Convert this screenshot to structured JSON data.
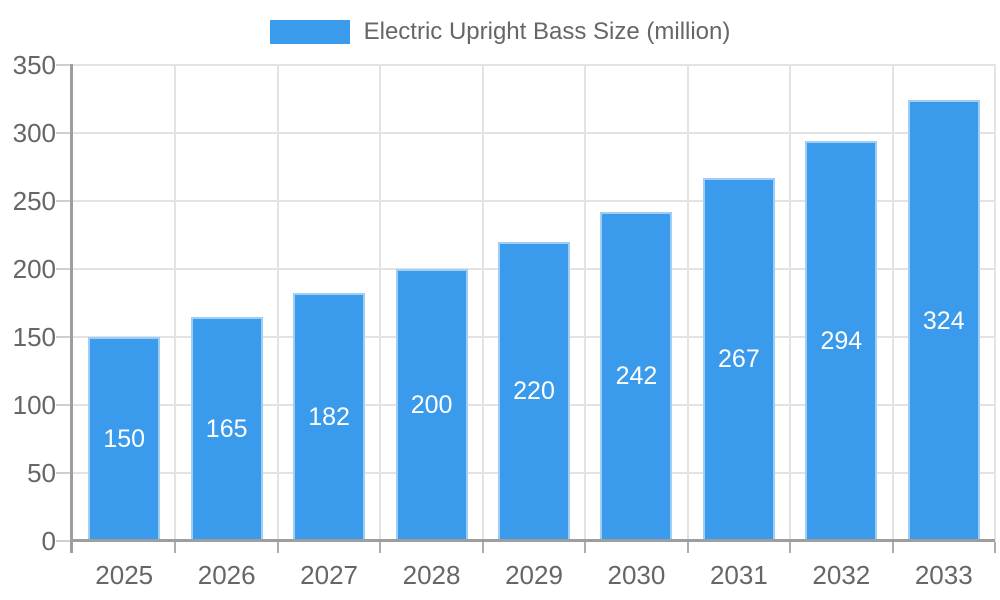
{
  "legend": {
    "label": "Electric Upright Bass Size (million)"
  },
  "colors": {
    "bar": "#3A9AEC",
    "bar_border": "#9FCEF5",
    "grid": "#E3E3E3",
    "axis": "#9E9E9E",
    "tick_x": "#ADADAD",
    "tick_y": "#CFCFCF",
    "label_text": "#666666",
    "value_text": "#FFFFFF",
    "background": "#FFFFFF"
  },
  "chart_data": {
    "type": "bar",
    "title": "Electric Upright Bass Size (million)",
    "categories": [
      "2025",
      "2026",
      "2027",
      "2028",
      "2029",
      "2030",
      "2031",
      "2032",
      "2033"
    ],
    "values": [
      150,
      165,
      182,
      200,
      220,
      242,
      267,
      294,
      324
    ],
    "xlabel": "",
    "ylabel": "",
    "ylim": [
      0,
      350
    ],
    "yticks": [
      0,
      50,
      100,
      150,
      200,
      250,
      300,
      350
    ],
    "grid": true,
    "legend_position": "top",
    "bar_labels_inside": true
  }
}
